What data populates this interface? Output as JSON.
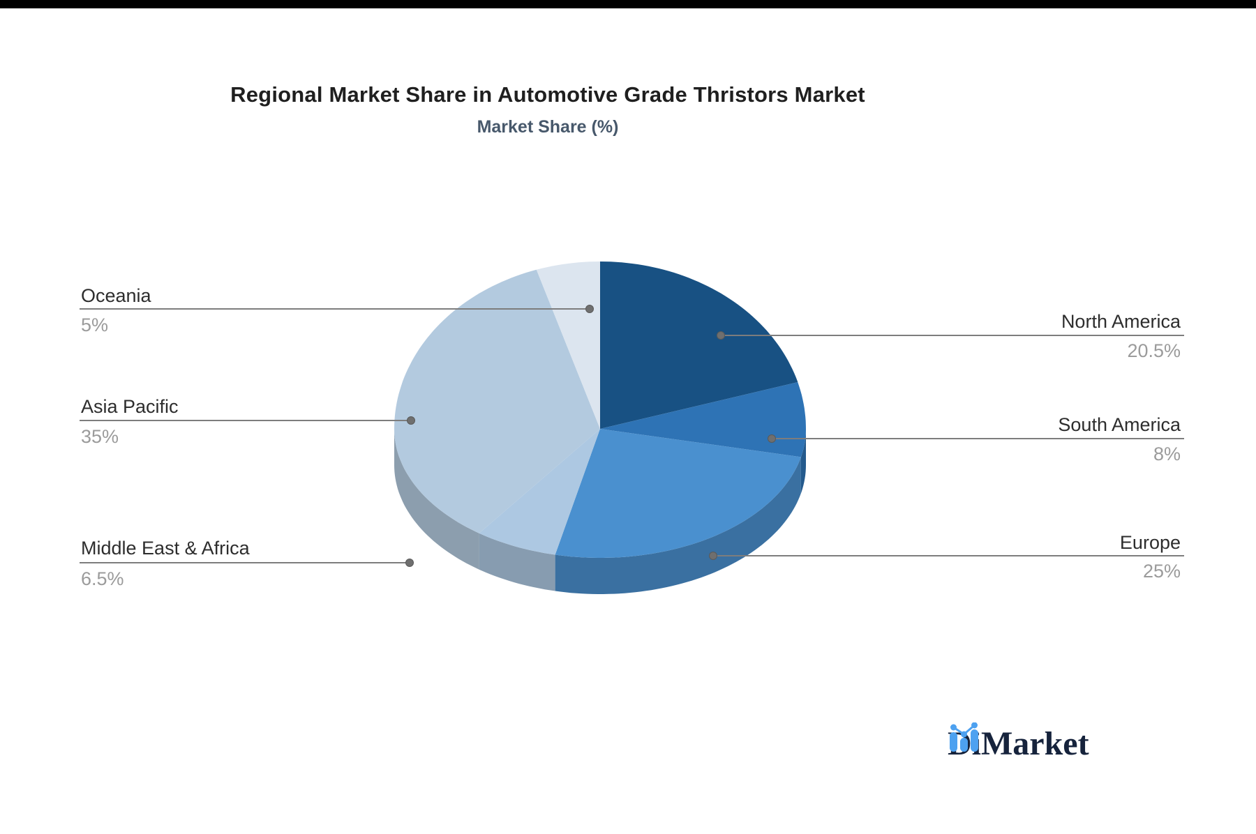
{
  "page": {
    "title": "Regional Market Share in Automotive Grade Thristors Market",
    "subtitle": "Market Share (%)"
  },
  "logo": {
    "text": "DiMarket",
    "icon": "bar-line-chart-icon",
    "icon_color": "#4da1f0",
    "text_color": "#16233c"
  },
  "colors": {
    "connector_line": "#7d7d7d",
    "connector_dot": "#6f6f6f",
    "label_name": "#2d2d2d",
    "label_value": "#9b9b9b",
    "title": "#1f1f1f",
    "subtitle": "#47586b",
    "background": "#ffffff"
  },
  "chart_data": {
    "type": "pie",
    "style": "3d",
    "title": "Regional Market Share in Automotive Grade Thristors Market",
    "subtitle": "Market Share (%)",
    "unit": "%",
    "start_angle_deg": 0,
    "direction": "clockwise",
    "legend_position": "none",
    "labels": "outside-with-connectors",
    "segments": [
      {
        "label": "North America",
        "value": 20.5,
        "display": "20.5%",
        "color": "#185183",
        "label_side": "right"
      },
      {
        "label": "South America",
        "value": 8,
        "display": "8%",
        "color": "#2e73b5",
        "label_side": "right"
      },
      {
        "label": "Europe",
        "value": 25,
        "display": "25%",
        "color": "#4a90cf",
        "label_side": "right"
      },
      {
        "label": "Middle East & Africa",
        "value": 6.5,
        "display": "6.5%",
        "color": "#adc8e2",
        "label_side": "left"
      },
      {
        "label": "Asia Pacific",
        "value": 35,
        "display": "35%",
        "color": "#b3cadf",
        "label_side": "left"
      },
      {
        "label": "Oceania",
        "value": 5,
        "display": "5%",
        "color": "#dce5ef",
        "label_side": "left"
      }
    ]
  }
}
